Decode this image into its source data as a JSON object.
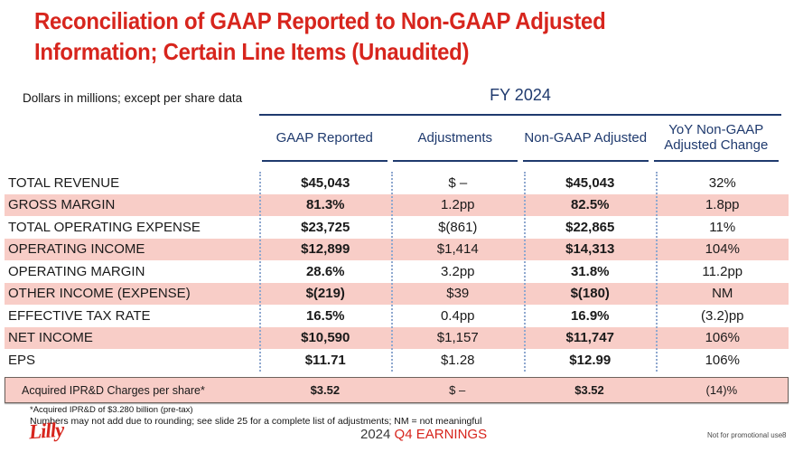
{
  "slide": {
    "title_line1": "Reconciliation of GAAP Reported to Non-GAAP Adjusted",
    "title_line2": "Information; Certain Line Items (Unaudited)",
    "units_note": "Dollars in millions; except per share data",
    "period_header": "FY 2024"
  },
  "table": {
    "columns": [
      "GAAP Reported",
      "Adjustments",
      "Non-GAAP Adjusted",
      "YoY Non-GAAP Adjusted Change"
    ],
    "rows": [
      {
        "label": "TOTAL REVENUE",
        "gaap": "$45,043",
        "adj": "$ –",
        "nongaap": "$45,043",
        "yoy": "32%"
      },
      {
        "label": "GROSS MARGIN",
        "gaap": "81.3%",
        "adj": "1.2pp",
        "nongaap": "82.5%",
        "yoy": "1.8pp"
      },
      {
        "label": "TOTAL OPERATING EXPENSE",
        "gaap": "$23,725",
        "adj": "$(861)",
        "nongaap": "$22,865",
        "yoy": "11%"
      },
      {
        "label": "OPERATING INCOME",
        "gaap": "$12,899",
        "adj": "$1,414",
        "nongaap": "$14,313",
        "yoy": "104%"
      },
      {
        "label": "OPERATING MARGIN",
        "gaap": "28.6%",
        "adj": "3.2pp",
        "nongaap": "31.8%",
        "yoy": "11.2pp"
      },
      {
        "label": "OTHER INCOME (EXPENSE)",
        "gaap": "$(219)",
        "adj": "$39",
        "nongaap": "$(180)",
        "yoy": "NM"
      },
      {
        "label": "EFFECTIVE TAX RATE",
        "gaap": "16.5%",
        "adj": "0.4pp",
        "nongaap": "16.9%",
        "yoy": "(3.2)pp"
      },
      {
        "label": "NET INCOME",
        "gaap": "$10,590",
        "adj": "$1,157",
        "nongaap": "$11,747",
        "yoy": "106%"
      },
      {
        "label": "EPS",
        "gaap": "$11.71",
        "adj": "$1.28",
        "nongaap": "$12.99",
        "yoy": "106%"
      }
    ],
    "acquired_row": {
      "label": "Acquired IPR&D Charges per share*",
      "gaap": "$3.52",
      "adj": "$ –",
      "nongaap": "$3.52",
      "yoy": "(14)%"
    }
  },
  "footnotes": [
    "*Acquired IPR&D of $3.280 billion (pre-tax)",
    "Numbers may not add due to rounding; see slide 25 for a complete list of adjustments; NM = not meaningful"
  ],
  "footer": {
    "logo": "Lilly",
    "earnings_year": "2024",
    "earnings_label": "Q4 EARNINGS",
    "disclaimer": "Not for promotional use",
    "page_number": "8"
  },
  "colors": {
    "title_red": "#d7251d",
    "header_navy": "#1f3a6e",
    "row_pink": "#f8cdc7"
  }
}
